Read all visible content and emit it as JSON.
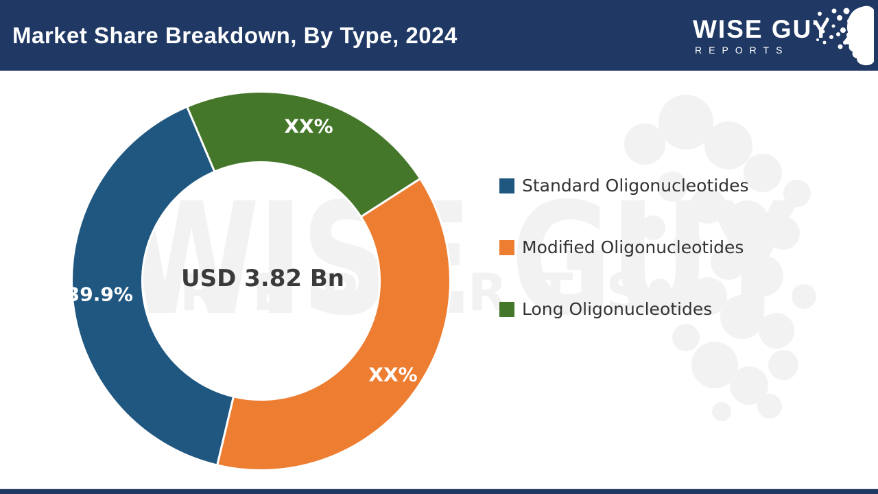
{
  "header": {
    "title": "Market Share Breakdown, By Type, 2024",
    "bg_color": "#1f3864",
    "logo": {
      "line1": "WISE GUY",
      "line2": "REPORTS"
    }
  },
  "chart_data": {
    "type": "donut",
    "title": "Market Share Breakdown, By Type, 2024",
    "center_label": "USD 3.82 Bn",
    "segments": [
      {
        "label": "Standard Oligonucleotides",
        "value_pct": 39.9,
        "display_label": "39.9%",
        "color": "#1f5780"
      },
      {
        "label": "Modified Oligonucleotides",
        "value_pct": 37.8,
        "display_label": "XX%",
        "color": "#ed7d31"
      },
      {
        "label": "Long Oligonucleotides",
        "value_pct": 22.3,
        "display_label": "XX%",
        "color": "#45772b"
      }
    ],
    "layout": {
      "start_angle_deg": -23,
      "direction": "counterclockwise",
      "inner_radius_ratio": 0.627,
      "label_radius_ratio": 0.855,
      "legend_position": "right",
      "slice_border_color": "#ffffff"
    }
  },
  "watermark": {
    "line1": "WISE GUY",
    "line2": "REPORTS"
  },
  "footer": {
    "bar_color": "#1f3864",
    "line_color": "#d9d9d9"
  },
  "text_colors": {
    "center_label": "#3a3a3a",
    "legend_label": "#333333",
    "watermark": "#f2f2f3"
  }
}
